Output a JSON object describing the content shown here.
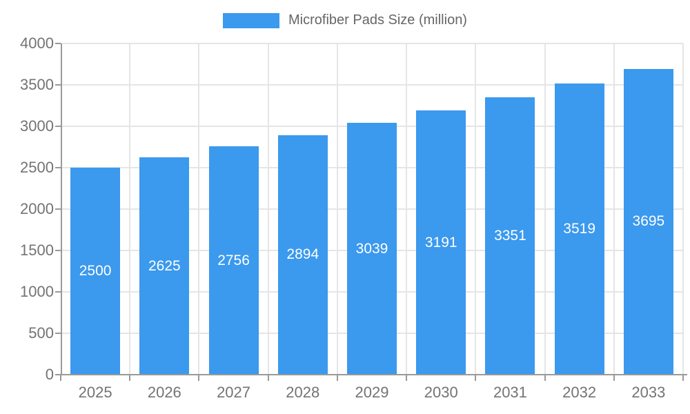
{
  "legend": {
    "items": [
      {
        "label": "Microfiber Pads Size (million)",
        "swatch_color": "#3B99EE"
      }
    ],
    "position": "top-center"
  },
  "colors": {
    "bar": "#3B99EE",
    "bar_label": "#ffffff",
    "axis_line": "#999999",
    "gridline": "#e5e5e5",
    "axis_label": "#737373",
    "legend_text": "#666666",
    "background": "#ffffff"
  },
  "chart_data": {
    "type": "bar",
    "title": "Microfiber Pads Size (million)",
    "categories": [
      "2025",
      "2026",
      "2027",
      "2028",
      "2029",
      "2030",
      "2031",
      "2032",
      "2033"
    ],
    "values": [
      2500,
      2625,
      2756,
      2894,
      3039,
      3191,
      3351,
      3519,
      3695
    ],
    "xlabel": "",
    "ylabel": "",
    "ylim": [
      0,
      4000
    ],
    "yticks": [
      0,
      500,
      1000,
      1500,
      2000,
      2500,
      3000,
      3500,
      4000
    ],
    "grid": true,
    "bar_labels_inside": true,
    "legend_position": "top-center"
  }
}
